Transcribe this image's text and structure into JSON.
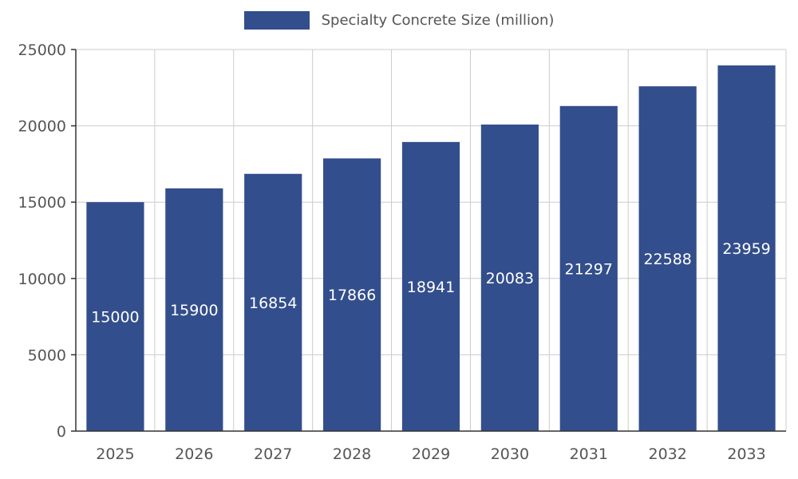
{
  "chart_data": {
    "type": "bar",
    "title": "Specialty Concrete Size (million)",
    "categories": [
      "2025",
      "2026",
      "2027",
      "2028",
      "2029",
      "2030",
      "2031",
      "2032",
      "2033"
    ],
    "values": [
      15000,
      15900,
      16854,
      17866,
      18941,
      20083,
      21297,
      22588,
      23959
    ],
    "xlabel": "",
    "ylabel": "",
    "ylim": [
      0,
      25000
    ],
    "yticks": [
      0,
      5000,
      10000,
      15000,
      20000,
      25000
    ],
    "grid": true,
    "legend_position": "top",
    "bar_color": "#334e8c",
    "grid_color": "#cccccc",
    "axis_color": "#333333",
    "tick_label_color": "#555555",
    "value_label_color": "#ffffff"
  }
}
